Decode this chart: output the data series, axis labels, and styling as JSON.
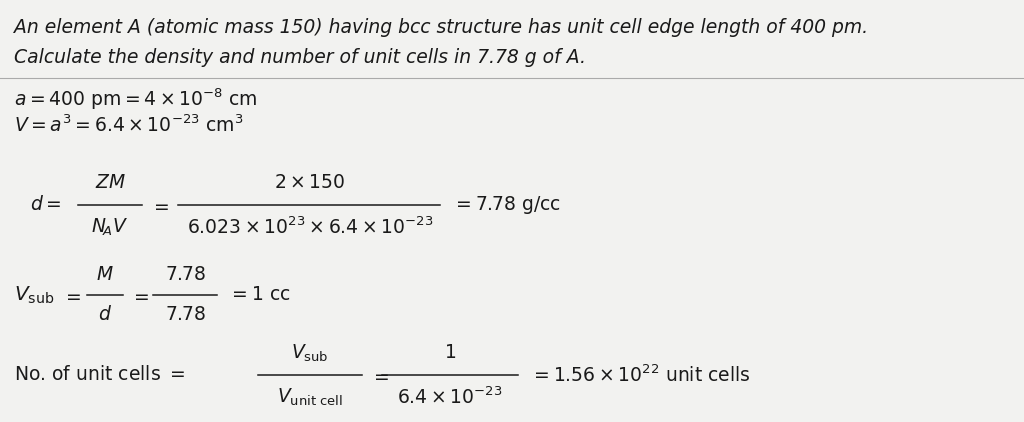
{
  "bg_color": "#f2f2f0",
  "text_color": "#1a1a1a",
  "figsize": [
    10.24,
    4.22
  ],
  "dpi": 100,
  "fontsize": 13.5,
  "title1": "An element A (atomic mass 150) having bcc structure has unit cell edge length of 400 pm.",
  "title2": "Calculate the density and number of unit cells in 7.78 g of A.",
  "line1": "a = 400 pm = 4 × 10⁻⁸ cm",
  "line2": "V = a³ = 6.4 × 10⁻²³ cm³"
}
